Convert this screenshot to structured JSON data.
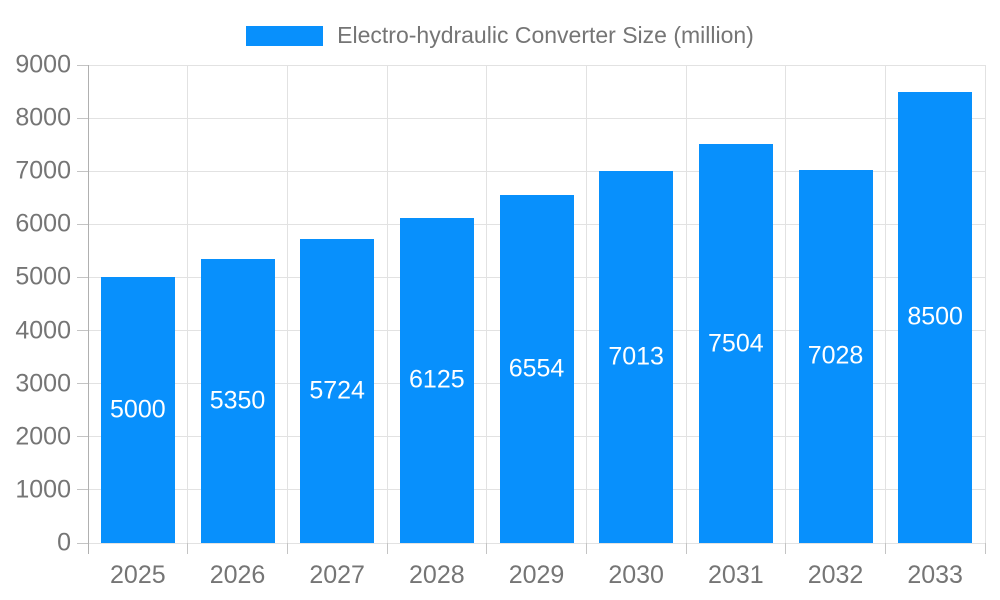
{
  "legend": {
    "label": "Electro-hydraulic Converter Size (million)"
  },
  "chart_data": {
    "type": "bar",
    "title": "Electro-hydraulic Converter Size (million)",
    "categories": [
      "2025",
      "2026",
      "2027",
      "2028",
      "2029",
      "2030",
      "2031",
      "2032",
      "2033"
    ],
    "series": [
      {
        "name": "Electro-hydraulic Converter Size (million)",
        "values": [
          5000,
          5350,
          5724,
          6125,
          6554,
          7013,
          7504,
          7028,
          8500
        ]
      }
    ],
    "xlabel": "",
    "ylabel": "",
    "ylim": [
      0,
      9000
    ],
    "y_tick_step": 1000,
    "y_tick_labels": [
      "0",
      "1000",
      "2000",
      "3000",
      "4000",
      "5000",
      "6000",
      "7000",
      "8000",
      "9000"
    ],
    "grid": true,
    "legend_position": "top",
    "value_labels_inside_bars": true,
    "colors": {
      "bar": "#0890fc",
      "value_label": "#ffffff",
      "axis_text": "#757575",
      "grid_line": "#e2e2e2",
      "axis_line": "#b0b0b0",
      "tick": "#c4c4c4",
      "background": "#ffffff"
    }
  }
}
